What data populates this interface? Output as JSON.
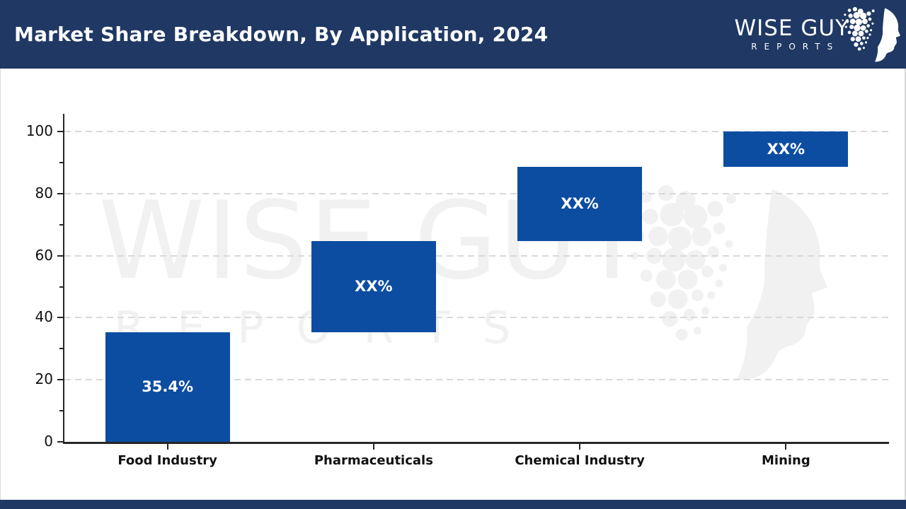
{
  "header": {
    "title": "Market Share Breakdown, By Application, 2024",
    "bg_color": "#1f3864",
    "logo": {
      "line1": "WISE GUY",
      "line2": "REPORTS",
      "face_icon": "dotted-head-profile"
    }
  },
  "watermark": {
    "line1": "WISE GUY",
    "line2": "REPORTS",
    "color": "#f1f1f1"
  },
  "footer": {
    "bg_color": "#1f3864"
  },
  "chart_data": {
    "type": "bar",
    "subtype": "stacked-breakdown-waterfall",
    "title": "Market Share Breakdown, By Application, 2024",
    "categories": [
      "Food Industry",
      "Pharmaceuticals",
      "Chemical Industry",
      "Mining"
    ],
    "segments": [
      {
        "category": "Food Industry",
        "start": 0,
        "end": 35.4,
        "label": "35.4%"
      },
      {
        "category": "Pharmaceuticals",
        "start": 35.4,
        "end": 64.8,
        "label": "XX%"
      },
      {
        "category": "Chemical Industry",
        "start": 64.8,
        "end": 88.6,
        "label": "XX%"
      },
      {
        "category": "Mining",
        "start": 88.6,
        "end": 100,
        "label": "XX%"
      }
    ],
    "xlabel": "",
    "ylabel": "",
    "ylim": [
      0,
      100
    ],
    "yticks": [
      0,
      20,
      40,
      60,
      80,
      100
    ],
    "yticks_minor": [
      10,
      30,
      50,
      70,
      90
    ],
    "grid": "horizontal-dashed",
    "grid_color": "#d9d9d9",
    "bar_color": "#0c4da2",
    "bar_label_color": "#ffffff",
    "axis_color": "#262626",
    "legend": "none"
  }
}
